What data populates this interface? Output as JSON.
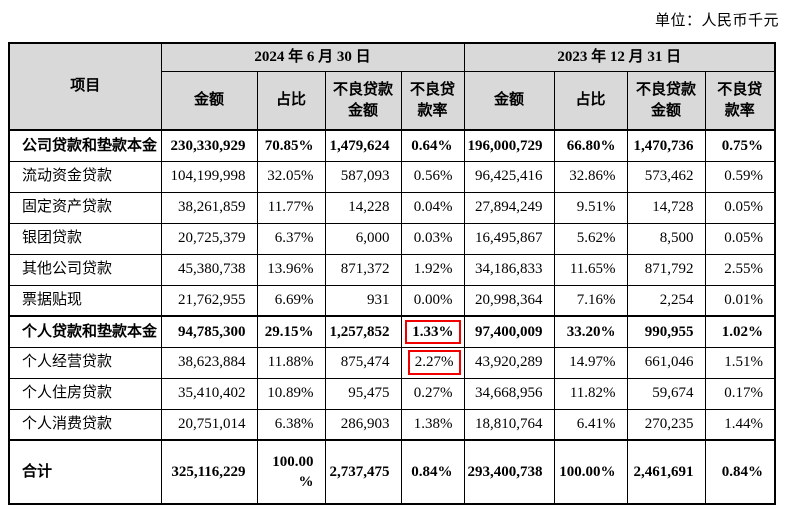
{
  "unit_label": "单位：人民币千元",
  "table": {
    "item_header": "项目",
    "period_groups": [
      {
        "label": "2024 年 6 月 30 日",
        "columns": [
          "金额",
          "占比",
          "不良贷款\n金额",
          "不良贷\n款率"
        ]
      },
      {
        "label": "2023 年 12 月 31 日",
        "columns": [
          "金额",
          "占比",
          "不良贷款\n金额",
          "不良贷\n款率"
        ]
      }
    ],
    "rows": [
      {
        "item": "公司贷款和垫款本金",
        "bold": true,
        "section": true,
        "values": [
          "230,330,929",
          "70.85%",
          "1,479,624",
          "0.64%",
          "196,000,729",
          "66.80%",
          "1,470,736",
          "0.75%"
        ],
        "highlights": []
      },
      {
        "item": "流动资金贷款",
        "bold": false,
        "section": false,
        "values": [
          "104,199,998",
          "32.05%",
          "587,093",
          "0.56%",
          "96,425,416",
          "32.86%",
          "573,462",
          "0.59%"
        ],
        "highlights": []
      },
      {
        "item": "固定资产贷款",
        "bold": false,
        "section": false,
        "values": [
          "38,261,859",
          "11.77%",
          "14,228",
          "0.04%",
          "27,894,249",
          "9.51%",
          "14,728",
          "0.05%"
        ],
        "highlights": []
      },
      {
        "item": "银团贷款",
        "bold": false,
        "section": false,
        "values": [
          "20,725,379",
          "6.37%",
          "6,000",
          "0.03%",
          "16,495,867",
          "5.62%",
          "8,500",
          "0.05%"
        ],
        "highlights": []
      },
      {
        "item": "其他公司贷款",
        "bold": false,
        "section": false,
        "values": [
          "45,380,738",
          "13.96%",
          "871,372",
          "1.92%",
          "34,186,833",
          "11.65%",
          "871,792",
          "2.55%"
        ],
        "highlights": []
      },
      {
        "item": "票据贴现",
        "bold": false,
        "section": false,
        "values": [
          "21,762,955",
          "6.69%",
          "931",
          "0.00%",
          "20,998,364",
          "7.16%",
          "2,254",
          "0.01%"
        ],
        "highlights": []
      },
      {
        "item": "个人贷款和垫款本金",
        "bold": true,
        "section": true,
        "values": [
          "94,785,300",
          "29.15%",
          "1,257,852",
          "1.33%",
          "97,400,009",
          "33.20%",
          "990,955",
          "1.02%"
        ],
        "highlights": [
          3
        ]
      },
      {
        "item": "个人经营贷款",
        "bold": false,
        "section": false,
        "values": [
          "38,623,884",
          "11.88%",
          "875,474",
          "2.27%",
          "43,920,289",
          "14.97%",
          "661,046",
          "1.51%"
        ],
        "highlights": [
          3
        ]
      },
      {
        "item": "个人住房贷款",
        "bold": false,
        "section": false,
        "values": [
          "35,410,402",
          "10.89%",
          "95,475",
          "0.27%",
          "34,668,956",
          "11.82%",
          "59,674",
          "0.17%"
        ],
        "highlights": []
      },
      {
        "item": "个人消费贷款",
        "bold": false,
        "section": false,
        "values": [
          "20,751,014",
          "6.38%",
          "286,903",
          "1.38%",
          "18,810,764",
          "6.41%",
          "270,235",
          "1.44%"
        ],
        "highlights": []
      },
      {
        "item": "合计",
        "bold": true,
        "section": true,
        "total": true,
        "values": [
          "325,116,229",
          "100.00\n%",
          "2,737,475",
          "0.84%",
          "293,400,738",
          "100.00%",
          "2,461,691",
          "0.84%"
        ],
        "highlights": []
      }
    ]
  },
  "colors": {
    "header_bg": "#d9d9d9",
    "highlight_border": "#f10000"
  }
}
